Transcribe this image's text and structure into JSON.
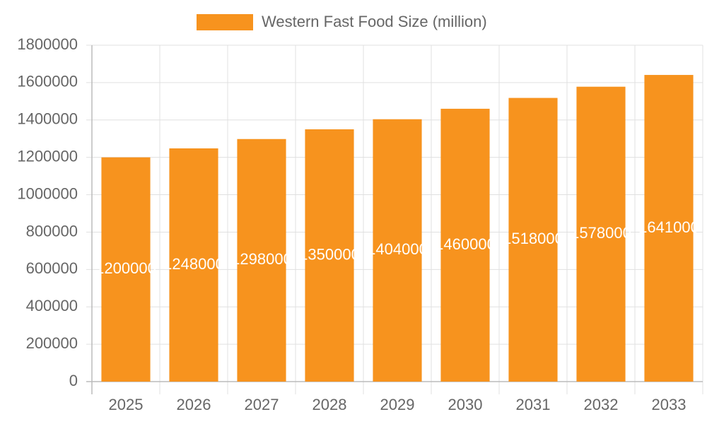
{
  "chart_data": {
    "type": "bar",
    "categories": [
      "2025",
      "2026",
      "2027",
      "2028",
      "2029",
      "2030",
      "2031",
      "2032",
      "2033"
    ],
    "series": [
      {
        "name": "Western Fast Food Size (million)",
        "color": "#f7931e",
        "values": [
          1200000,
          1248000,
          1298000,
          1350000,
          1404000,
          1460000,
          1518000,
          1578000,
          1641000
        ]
      }
    ],
    "ylim": [
      0,
      1800000
    ],
    "yticks": [
      0,
      200000,
      400000,
      600000,
      800000,
      1000000,
      1200000,
      1400000,
      1600000,
      1800000
    ],
    "grid": true,
    "legend": "top"
  }
}
